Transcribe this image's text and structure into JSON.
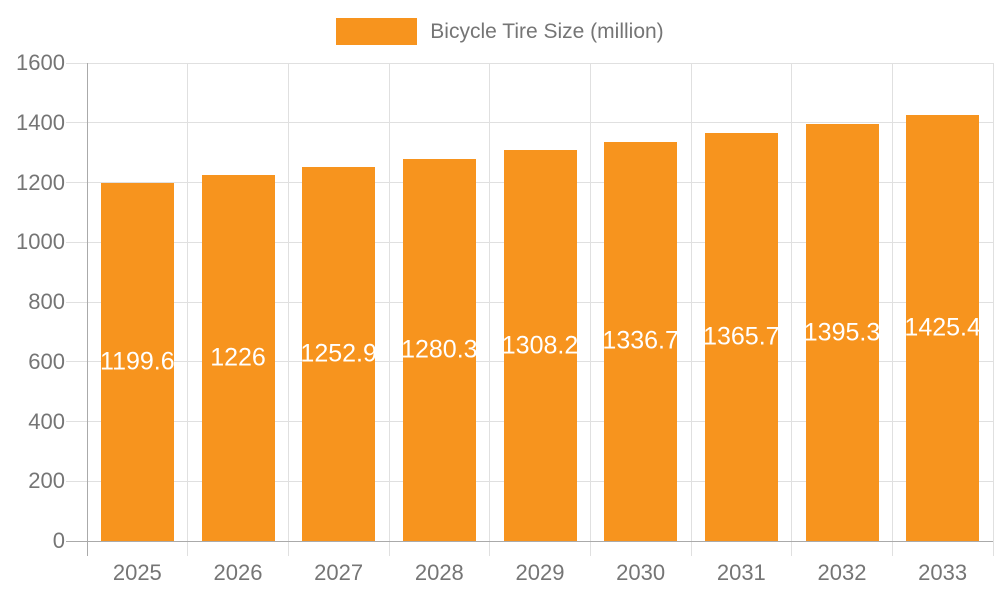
{
  "chart_data": {
    "type": "bar",
    "legend": {
      "label": "Bicycle Tire Size (million)",
      "position": "top-center"
    },
    "categories": [
      "2025",
      "2026",
      "2027",
      "2028",
      "2029",
      "2030",
      "2031",
      "2032",
      "2033"
    ],
    "series": [
      {
        "name": "Bicycle Tire Size (million)",
        "values": [
          1199.6,
          1226,
          1252.9,
          1280.3,
          1308.2,
          1336.7,
          1365.7,
          1395.3,
          1425.4
        ]
      }
    ],
    "bar_value_labels": [
      "1199.6",
      "1226",
      "1252.9",
      "1280.3",
      "1308.2",
      "1336.7",
      "1365.7",
      "1395.3",
      "1425.4"
    ],
    "bar_value_label_position": "inside-center",
    "xlabel": "",
    "ylabel": "",
    "ylim": [
      0,
      1600
    ],
    "yticks": [
      0,
      200,
      400,
      600,
      800,
      1000,
      1200,
      1400,
      1600
    ],
    "grid": true,
    "legend_position": "top-center",
    "colors": {
      "bar": "#F7941E",
      "bar_label_text": "#FFFFFF",
      "axis_text": "#757575",
      "axis_line": "#AAAAAA",
      "gridline": "#E0E0E0",
      "background": "#FFFFFF"
    }
  }
}
